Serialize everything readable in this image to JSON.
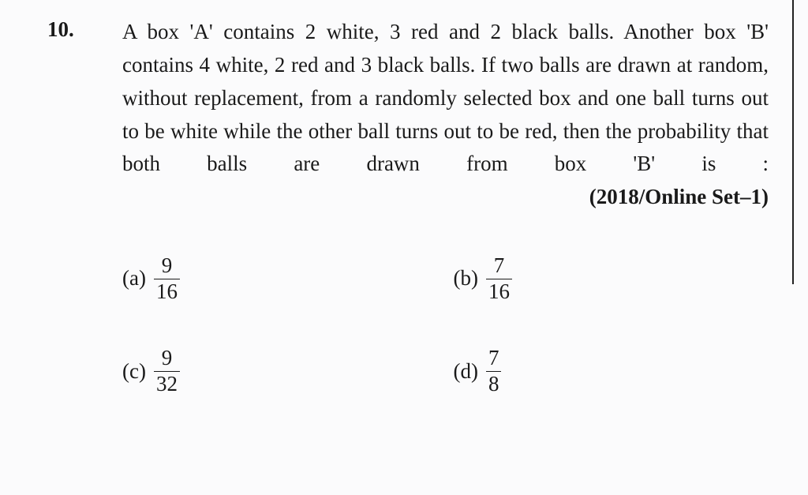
{
  "question": {
    "number": "10.",
    "text_part1": "A box 'A' contains 2 white, 3 red and 2 black balls. Another box 'B' contains 4 white, 2 red and 3 black balls. If two balls are drawn at random, without replacement, from a randomly selected box and one ball turns out to be white while the other ball turns out to be red, then the probability that both balls are drawn from box 'B' is :",
    "source": "(2018/Online Set–1)"
  },
  "options": {
    "a": {
      "label": "(a)",
      "numerator": "9",
      "denominator": "16"
    },
    "b": {
      "label": "(b)",
      "numerator": "7",
      "denominator": "16"
    },
    "c": {
      "label": "(c)",
      "numerator": "9",
      "denominator": "32"
    },
    "d": {
      "label": "(d)",
      "numerator": "7",
      "denominator": "8"
    }
  },
  "style": {
    "background": "#fbfbfc",
    "text_color": "#1a1a1a",
    "font_size_pt": 27,
    "line_border_color": "#1a1a1a"
  }
}
